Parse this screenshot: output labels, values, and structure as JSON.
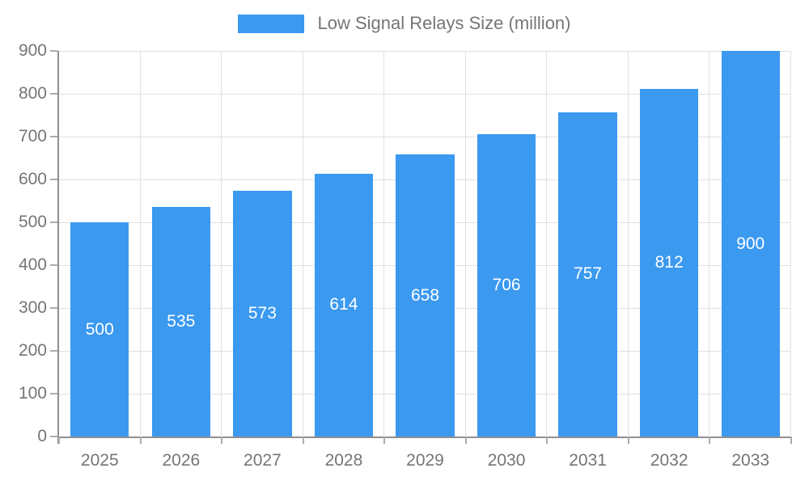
{
  "chart_data": {
    "type": "bar",
    "title": "Low Signal Relays Size (million)",
    "legend": {
      "label": "Low Signal Relays Size (million)",
      "position": "top-center"
    },
    "categories": [
      "2025",
      "2026",
      "2027",
      "2028",
      "2029",
      "2030",
      "2031",
      "2032",
      "2033"
    ],
    "values": [
      500,
      535,
      573,
      614,
      658,
      706,
      757,
      812,
      900
    ],
    "xlabel": "",
    "ylabel": "",
    "ylim": [
      0,
      900
    ],
    "yticks": [
      0,
      100,
      200,
      300,
      400,
      500,
      600,
      700,
      800,
      900
    ],
    "grid": true,
    "bar_label_position": "inside-center",
    "colors": {
      "bar": "#3B99F0",
      "bar_label": "#FFFFFF",
      "axis_text": "#757575",
      "grid_line": "#E0E0E0",
      "axis_line": "#8F8F8F",
      "tick": "#ABABAB",
      "background": "#FFFFFF"
    }
  }
}
